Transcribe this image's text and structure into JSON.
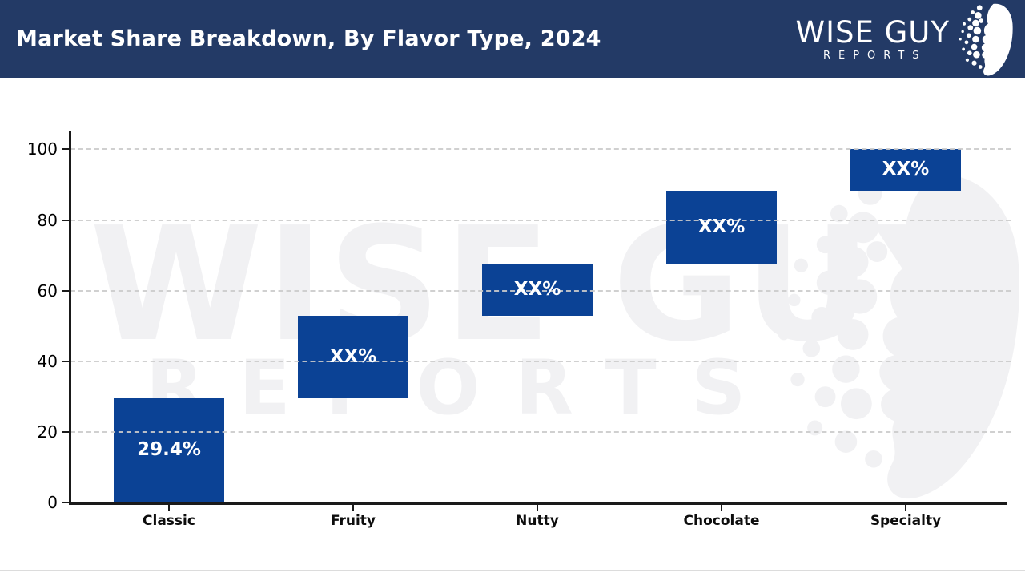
{
  "header": {
    "title": "Market Share Breakdown, By Flavor Type, 2024",
    "logo": {
      "line1": "WISE GUY",
      "line2": "REPORTS",
      "icon": "wiseguy-head-icon"
    }
  },
  "watermark": {
    "line1": "WISE GUY",
    "line2": "REPORTS"
  },
  "chart_data": {
    "type": "bar",
    "subtype": "waterfall",
    "title": "Market Share Breakdown, By Flavor Type, 2024",
    "categories": [
      "Classic",
      "Fruity",
      "Nutty",
      "Chocolate",
      "Specialty"
    ],
    "segments": [
      {
        "category": "Classic",
        "start": 0,
        "end": 29.4,
        "value": 29.4,
        "label": "29.4%"
      },
      {
        "category": "Fruity",
        "start": 29.4,
        "end": 52.8,
        "value": 23.4,
        "label": "XX%"
      },
      {
        "category": "Nutty",
        "start": 52.8,
        "end": 67.6,
        "value": 14.8,
        "label": "XX%"
      },
      {
        "category": "Chocolate",
        "start": 67.6,
        "end": 88.2,
        "value": 20.6,
        "label": "XX%"
      },
      {
        "category": "Specialty",
        "start": 88.2,
        "end": 100,
        "value": 11.8,
        "label": "XX%"
      }
    ],
    "xlabel": "",
    "ylabel": "",
    "ylim": [
      0,
      100
    ],
    "yticks": [
      0,
      20,
      40,
      60,
      80,
      100
    ],
    "grid": "horizontal-dashed-over-bars",
    "legend": "none",
    "bar_color": "#0b4295",
    "bar_label_color": "#ffffff",
    "grid_color": "#cbcbcb",
    "axis_color": "#1a1a1a",
    "header_color": "#233a66"
  }
}
